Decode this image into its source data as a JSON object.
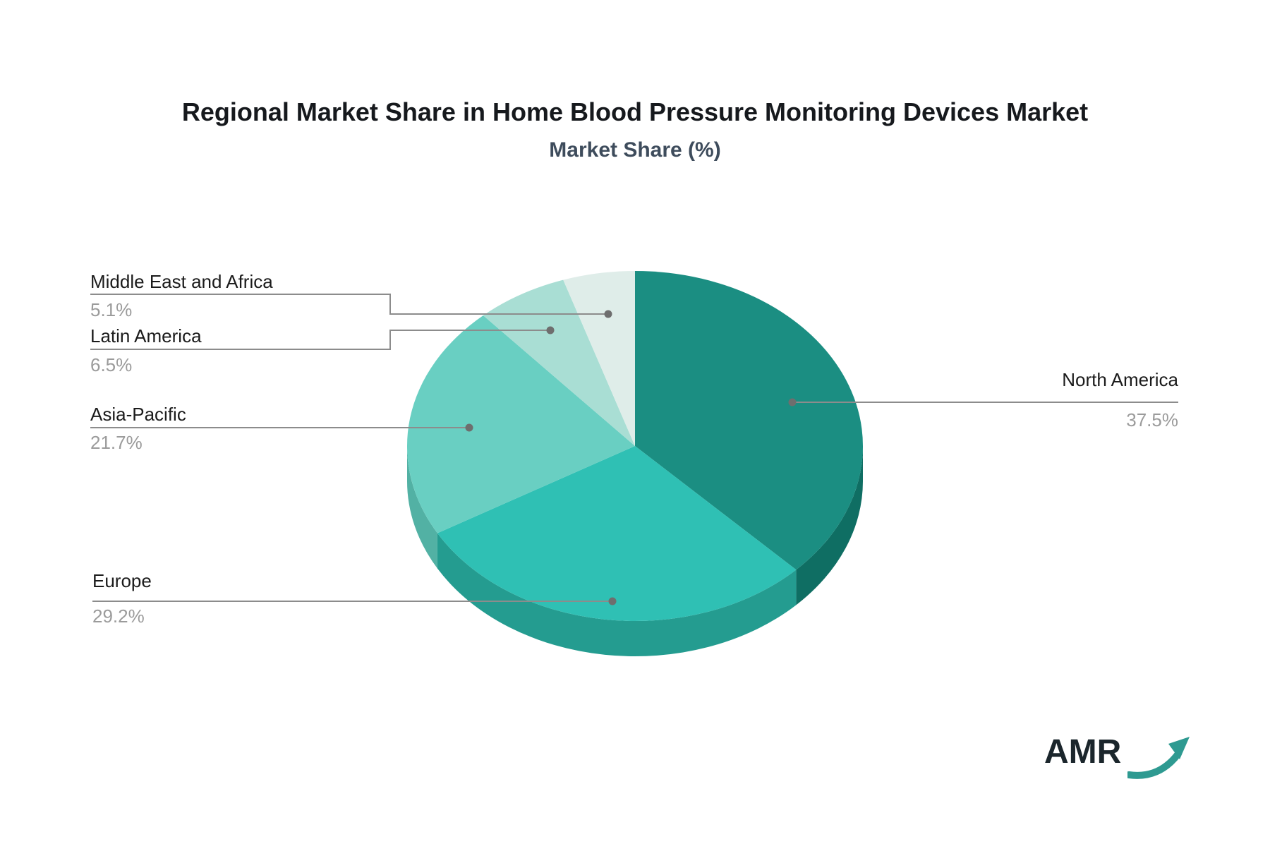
{
  "header": {
    "title": "Regional Market Share in Home Blood Pressure Monitoring Devices Market",
    "subtitle": "Market Share (%)"
  },
  "chart_data": {
    "type": "pie",
    "title": "Regional Market Share in Home Blood Pressure Monitoring Devices Market",
    "subtitle": "Market Share (%)",
    "unit": "%",
    "style": "3d-pie",
    "start_angle": "top",
    "direction": "clockwise",
    "slices": [
      {
        "label": "North America",
        "value": 37.5,
        "display": "37.5%",
        "color": "#1B8E82",
        "side_color": "#0F6E63",
        "label_side": "right"
      },
      {
        "label": "Europe",
        "value": 29.2,
        "display": "29.2%",
        "color": "#2FC0B4",
        "side_color": "#249C90",
        "label_side": "left"
      },
      {
        "label": "Asia-Pacific",
        "value": 21.7,
        "display": "21.7%",
        "color": "#69CFC2",
        "side_color": "#52B1A4",
        "label_side": "left"
      },
      {
        "label": "Latin America",
        "value": 6.5,
        "display": "6.5%",
        "color": "#A9DED4",
        "side_color": "#8FCCC2",
        "label_side": "left"
      },
      {
        "label": "Middle East and Africa",
        "value": 5.1,
        "display": "5.1%",
        "color": "#DFEDE9",
        "side_color": "#C2DCD6",
        "label_side": "left"
      }
    ],
    "leader_line_color": "#8C8C8C",
    "leader_dot_color": "#6E6E6E",
    "label_text_color": "#1B1B1B",
    "value_text_color": "#9B9B9B"
  },
  "branding": {
    "logo_text": "AMR",
    "logo_text_color": "#1B262C",
    "logo_arrow_color": "#2E9A91"
  }
}
